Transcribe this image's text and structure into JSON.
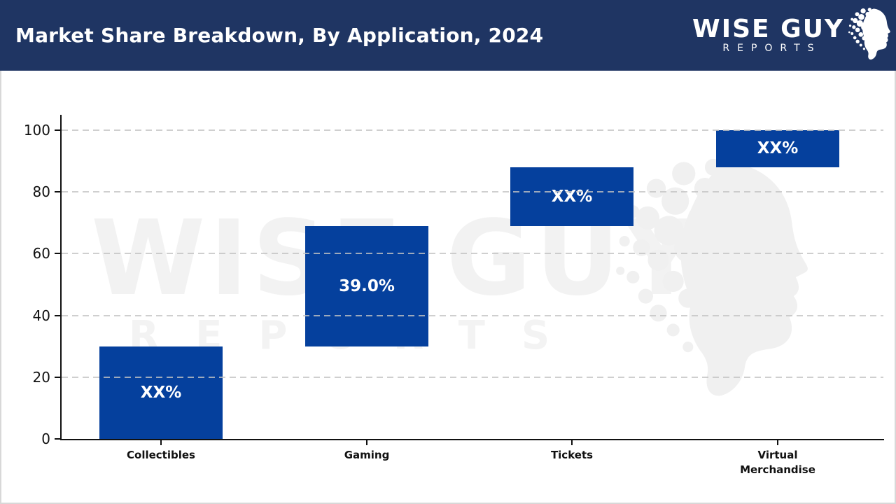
{
  "header": {
    "title": "Market Share Breakdown, By Application, 2024",
    "brand": {
      "line1": "WISE GUY",
      "line2": "REPORTS"
    }
  },
  "watermark": {
    "line1": "WISE GUY",
    "line2": "REPORTS"
  },
  "colors": {
    "header_bg": "#1f3563",
    "bar": "#05409d",
    "bar_label": "#ffffff",
    "grid": "#d9d9d9",
    "axis": "#111111",
    "watermark": "#f1f1f1"
  },
  "chart_data": {
    "type": "bar",
    "subtype": "waterfall-breakdown",
    "title": "Market Share Breakdown, By Application, 2024",
    "categories": [
      "Collectibles",
      "Gaming",
      "Tickets",
      "Virtual Merchandise"
    ],
    "segments": [
      {
        "category": "Collectibles",
        "start": 0,
        "end": 30,
        "label": "XX%"
      },
      {
        "category": "Gaming",
        "start": 30,
        "end": 69,
        "label": "39.0%"
      },
      {
        "category": "Tickets",
        "start": 69,
        "end": 88,
        "label": "XX%"
      },
      {
        "category": "Virtual Merchandise",
        "start": 88,
        "end": 100,
        "label": "XX%"
      }
    ],
    "xlabel": "",
    "ylabel": "",
    "ylim": [
      0,
      100
    ],
    "yticks": [
      0,
      20,
      40,
      60,
      80,
      100
    ],
    "grid": "dashed-horizontal",
    "legend": "none"
  }
}
